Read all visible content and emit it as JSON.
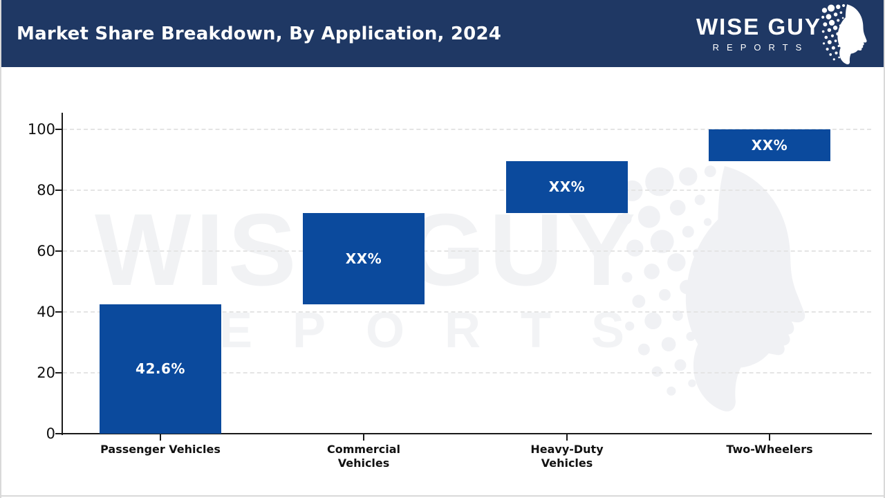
{
  "header": {
    "logo": {
      "line1": "WISE GUY",
      "line2": "REPORTS"
    }
  },
  "watermark": {
    "line1": "WISE GUY",
    "line2": "REPORTS"
  },
  "chart_data": {
    "type": "bar",
    "subtype": "stacked-waterfall",
    "title": "Market Share Breakdown, By Application, 2024",
    "categories": [
      "Passenger Vehicles",
      "Commercial\nVehicles",
      "Heavy-Duty\nVehicles",
      "Two-Wheelers"
    ],
    "segments": [
      {
        "category": "Passenger Vehicles",
        "start": 0,
        "end": 42.6,
        "label": "42.6%"
      },
      {
        "category": "Commercial Vehicles",
        "start": 42.6,
        "end": 72.6,
        "label": "XX%"
      },
      {
        "category": "Heavy-Duty Vehicles",
        "start": 72.6,
        "end": 89.6,
        "label": "XX%"
      },
      {
        "category": "Two-Wheelers",
        "start": 89.6,
        "end": 100,
        "label": "XX%"
      }
    ],
    "y_ticks": [
      0,
      20,
      40,
      60,
      80,
      100
    ],
    "ylim": [
      0,
      105
    ],
    "xlabel": "",
    "ylabel": "",
    "bar_color": "#0b4a9d",
    "grid": "horizontal-dashed",
    "legend": "none"
  }
}
